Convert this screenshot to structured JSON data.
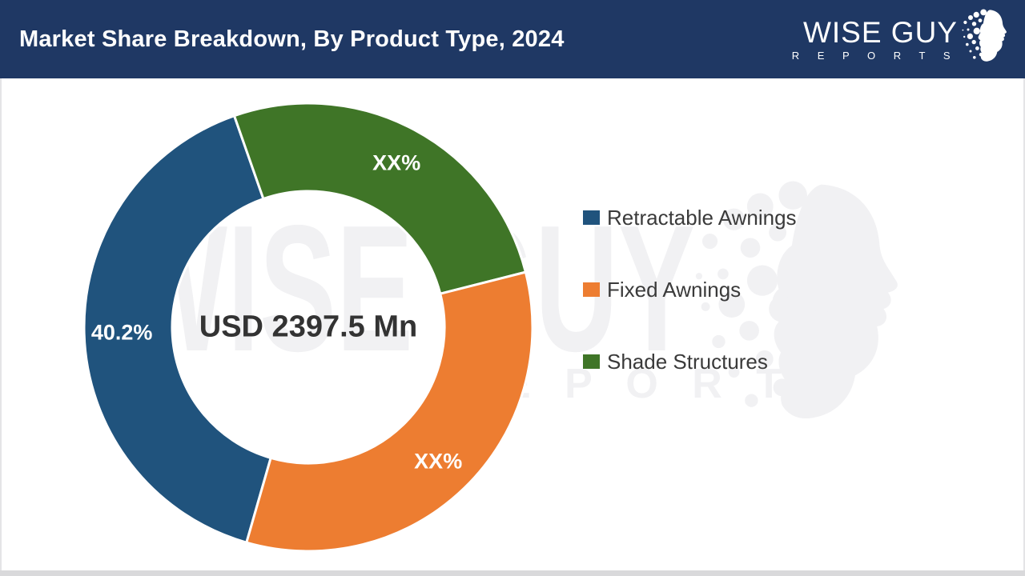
{
  "header": {
    "title": "Market Share Breakdown, By Product Type, 2024",
    "logo": {
      "line1": "WISE GUY",
      "line2": "R E P O R T S"
    }
  },
  "watermark": {
    "line1": "WISE GUY",
    "line2": "R E P O R T S"
  },
  "chart_data": {
    "type": "pie",
    "subtype": "donut",
    "title": "Market Share Breakdown, By Product Type, 2024",
    "center_label": "USD 2397.5 Mn",
    "start_angle_deg": 196,
    "direction": "clockwise",
    "legend_position": "right",
    "segments": [
      {
        "name": "Retractable Awnings",
        "label": "40.2%",
        "value_pct": 40.2,
        "color": "#20537D"
      },
      {
        "name": "Shade Structures",
        "label": "XX%",
        "value_pct": 26.4,
        "color": "#3F7527"
      },
      {
        "name": "Fixed Awnings",
        "label": "XX%",
        "value_pct": 33.4,
        "color": "#ED7D31"
      }
    ]
  },
  "legend": [
    {
      "label": "Retractable Awnings",
      "color": "#20537D"
    },
    {
      "label": "Fixed Awnings",
      "color": "#ED7D31"
    },
    {
      "label": "Shade Structures",
      "color": "#3F7527"
    }
  ],
  "colors": {
    "header_bg": "#1F3864",
    "center_text": "#333333",
    "watermark": "#F1F1F3",
    "bottom_bar": "#D9D9DB"
  }
}
